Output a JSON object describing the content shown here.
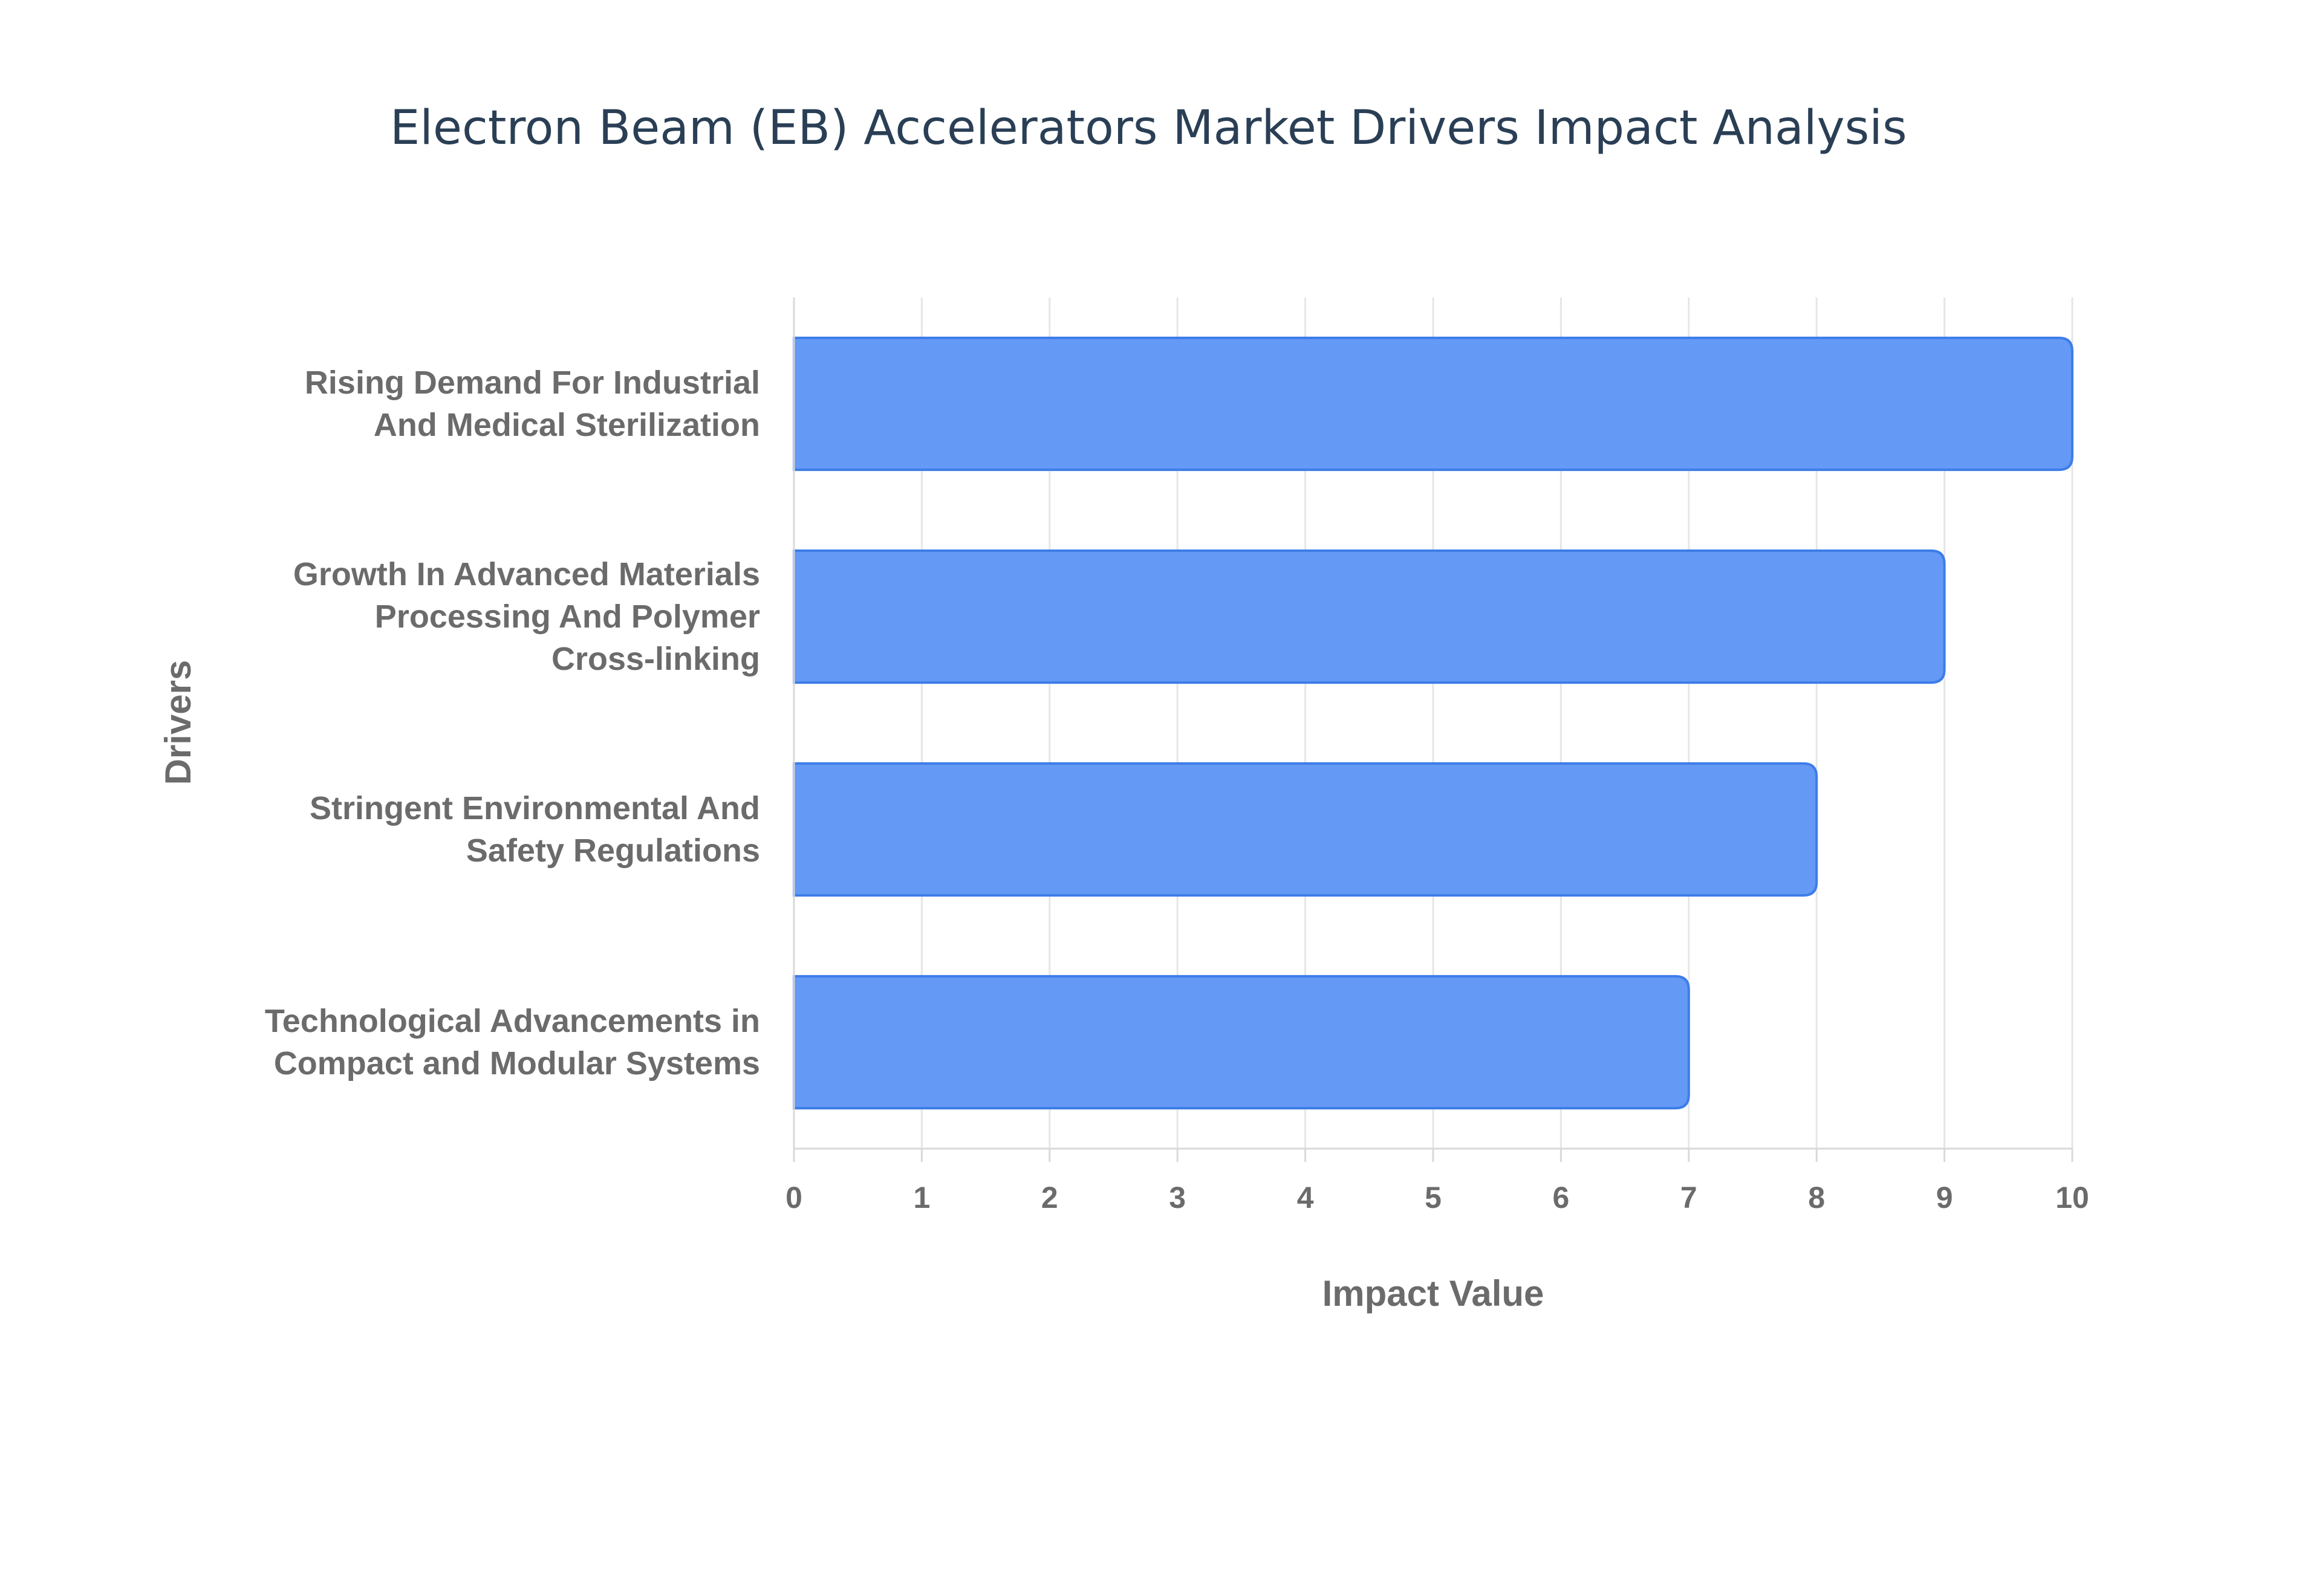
{
  "chart_data": {
    "type": "bar",
    "orientation": "horizontal",
    "title": "Electron Beam (EB) Accelerators Market Drivers Impact Analysis",
    "xlabel": "Impact Value",
    "ylabel": "Drivers",
    "xlim": [
      0,
      10
    ],
    "x_ticks": [
      "0",
      "1",
      "2",
      "3",
      "4",
      "5",
      "6",
      "7",
      "8",
      "9",
      "10"
    ],
    "grid": true,
    "categories": [
      [
        "Rising Demand For Industrial",
        "And Medical Sterilization"
      ],
      [
        "Growth In Advanced Materials",
        "Processing And Polymer",
        "Cross-linking"
      ],
      [
        "Stringent Environmental And",
        "Safety Regulations"
      ],
      [
        "Technological Advancements in",
        "Compact and Modular Systems"
      ]
    ],
    "values": [
      10,
      9,
      8,
      7
    ],
    "bar_color": "#6499f5",
    "bar_border_color": "#3d7de8"
  }
}
